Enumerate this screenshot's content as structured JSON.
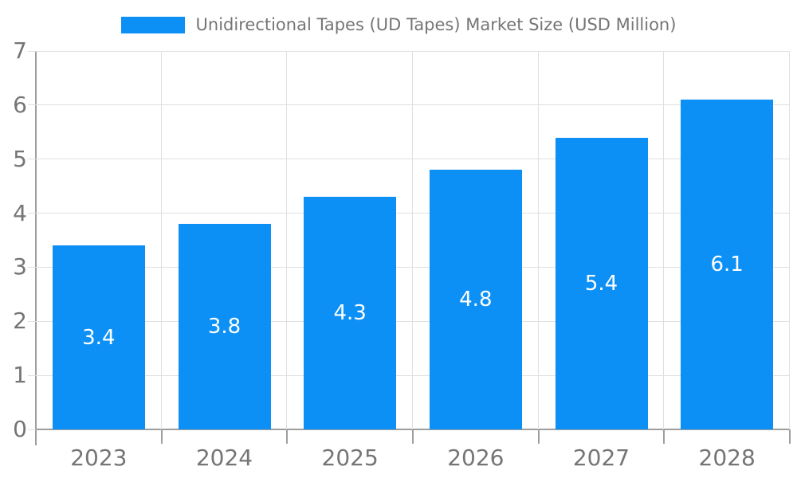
{
  "chart_data": {
    "type": "bar",
    "title": "Unidirectional Tapes (UD Tapes) Market Size (USD Million)",
    "categories": [
      "2023",
      "2024",
      "2025",
      "2026",
      "2027",
      "2028"
    ],
    "values": [
      3.4,
      3.8,
      4.3,
      4.8,
      5.4,
      6.1
    ],
    "xlabel": "",
    "ylabel": "",
    "ylim": [
      0,
      7
    ],
    "yticks": [
      0,
      1,
      2,
      3,
      4,
      5,
      6,
      7
    ],
    "grid": true,
    "legend_position": "top-center",
    "value_label_position": "inside-center",
    "bar_color": "#0d90f5",
    "value_label_color": "#ffffff",
    "axis_text_color": "#757575"
  }
}
